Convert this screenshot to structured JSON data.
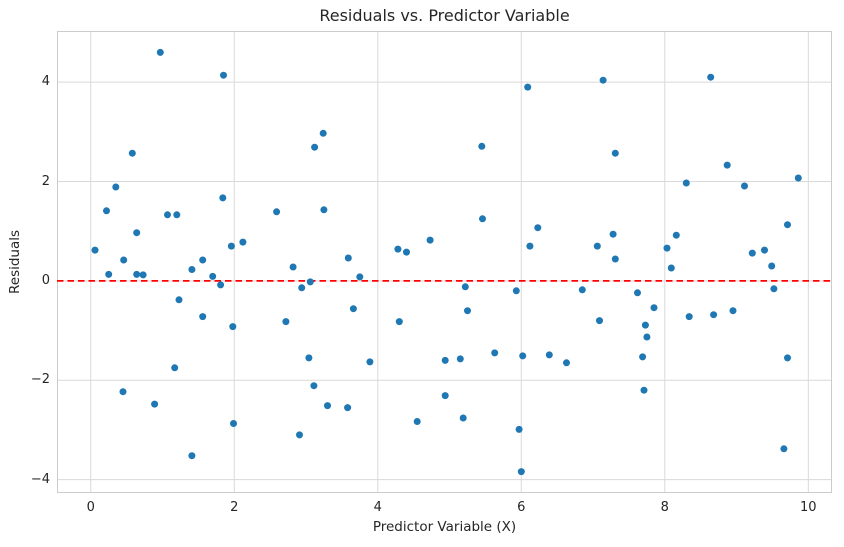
{
  "chart_data": {
    "type": "scatter",
    "title": "Residuals vs. Predictor Variable",
    "xlabel": "Predictor Variable (X)",
    "ylabel": "Residuals",
    "xlim": [
      -0.47,
      10.33
    ],
    "ylim": [
      -4.27,
      5.03
    ],
    "grid": true,
    "legend": false,
    "x_ticks": [
      {
        "v": 0,
        "label": "0"
      },
      {
        "v": 2,
        "label": "2"
      },
      {
        "v": 4,
        "label": "4"
      },
      {
        "v": 6,
        "label": "6"
      },
      {
        "v": 8,
        "label": "8"
      },
      {
        "v": 10,
        "label": "10"
      }
    ],
    "y_ticks": [
      {
        "v": -4,
        "label": "−4"
      },
      {
        "v": -2,
        "label": "−2"
      },
      {
        "v": 0,
        "label": "0"
      },
      {
        "v": 2,
        "label": "2"
      },
      {
        "v": 4,
        "label": "4"
      }
    ],
    "reference_line": {
      "y": 0,
      "color": "#ff0000",
      "style": "dashed"
    },
    "colors": {
      "marker": "#1f77b4",
      "grid": "#d9d9d9",
      "border": "#cccccc",
      "text": "#262626",
      "background": "#ffffff"
    },
    "marker_radius": 3.5,
    "points": [
      [
        0.06,
        0.62
      ],
      [
        0.22,
        1.41
      ],
      [
        0.25,
        0.13
      ],
      [
        0.35,
        1.89
      ],
      [
        0.45,
        -2.23
      ],
      [
        0.46,
        0.42
      ],
      [
        0.58,
        2.57
      ],
      [
        0.64,
        0.97
      ],
      [
        0.64,
        0.13
      ],
      [
        0.73,
        0.12
      ],
      [
        0.89,
        -2.48
      ],
      [
        0.97,
        4.6
      ],
      [
        1.07,
        1.33
      ],
      [
        1.17,
        -1.75
      ],
      [
        1.2,
        1.33
      ],
      [
        1.23,
        -0.38
      ],
      [
        1.41,
        0.23
      ],
      [
        1.41,
        -3.52
      ],
      [
        1.56,
        0.42
      ],
      [
        1.56,
        -0.72
      ],
      [
        1.7,
        0.09
      ],
      [
        1.81,
        -0.08
      ],
      [
        1.84,
        1.67
      ],
      [
        1.85,
        4.14
      ],
      [
        1.96,
        0.7
      ],
      [
        1.98,
        -0.92
      ],
      [
        1.99,
        -2.87
      ],
      [
        2.12,
        0.78
      ],
      [
        2.59,
        1.39
      ],
      [
        2.72,
        -0.82
      ],
      [
        2.82,
        0.28
      ],
      [
        2.91,
        -3.1
      ],
      [
        2.94,
        -0.14
      ],
      [
        3.04,
        -1.55
      ],
      [
        3.06,
        -0.02
      ],
      [
        3.11,
        -2.11
      ],
      [
        3.12,
        2.69
      ],
      [
        3.24,
        2.97
      ],
      [
        3.25,
        1.43
      ],
      [
        3.3,
        -2.51
      ],
      [
        3.58,
        -2.55
      ],
      [
        3.59,
        0.46
      ],
      [
        3.66,
        -0.56
      ],
      [
        3.75,
        0.08
      ],
      [
        3.89,
        -1.63
      ],
      [
        4.28,
        0.64
      ],
      [
        4.3,
        -0.82
      ],
      [
        4.4,
        0.58
      ],
      [
        4.55,
        -2.83
      ],
      [
        4.73,
        0.82
      ],
      [
        4.94,
        -1.6
      ],
      [
        4.94,
        -2.31
      ],
      [
        5.15,
        -1.57
      ],
      [
        5.19,
        -2.76
      ],
      [
        5.22,
        -0.12
      ],
      [
        5.25,
        -0.6
      ],
      [
        5.45,
        2.71
      ],
      [
        5.46,
        1.25
      ],
      [
        5.63,
        -1.45
      ],
      [
        5.93,
        -0.2
      ],
      [
        5.97,
        -2.99
      ],
      [
        6.0,
        -3.84
      ],
      [
        6.02,
        -1.51
      ],
      [
        6.09,
        3.9
      ],
      [
        6.12,
        0.7
      ],
      [
        6.23,
        1.07
      ],
      [
        6.39,
        -1.49
      ],
      [
        6.63,
        -1.65
      ],
      [
        6.85,
        -0.18
      ],
      [
        7.06,
        0.7
      ],
      [
        7.09,
        -0.8
      ],
      [
        7.14,
        4.04
      ],
      [
        7.28,
        0.94
      ],
      [
        7.31,
        2.57
      ],
      [
        7.31,
        0.44
      ],
      [
        7.62,
        -0.24
      ],
      [
        7.69,
        -1.53
      ],
      [
        7.71,
        -2.2
      ],
      [
        7.73,
        -0.89
      ],
      [
        7.75,
        -1.13
      ],
      [
        7.85,
        -0.54
      ],
      [
        8.03,
        0.66
      ],
      [
        8.09,
        0.26
      ],
      [
        8.16,
        0.92
      ],
      [
        8.3,
        1.97
      ],
      [
        8.34,
        -0.72
      ],
      [
        8.64,
        4.1
      ],
      [
        8.68,
        -0.68
      ],
      [
        8.87,
        2.33
      ],
      [
        8.95,
        -0.6
      ],
      [
        9.11,
        1.91
      ],
      [
        9.22,
        0.56
      ],
      [
        9.39,
        0.62
      ],
      [
        9.49,
        0.3
      ],
      [
        9.52,
        -0.16
      ],
      [
        9.66,
        -3.38
      ],
      [
        9.71,
        1.13
      ],
      [
        9.71,
        -1.55
      ],
      [
        9.86,
        2.07
      ]
    ]
  }
}
